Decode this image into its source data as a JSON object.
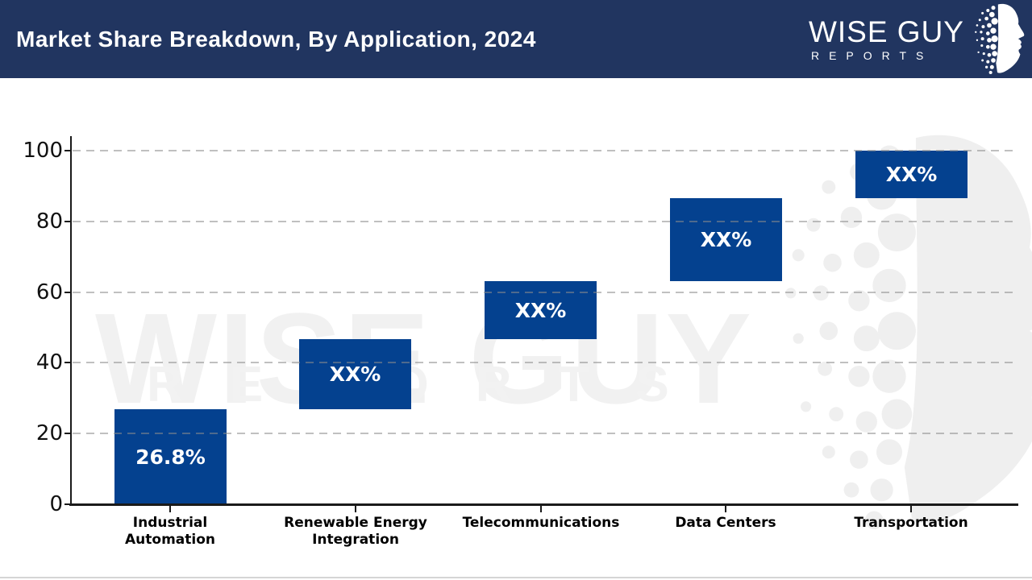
{
  "header": {
    "title": "Market Share Breakdown, By Application, 2024",
    "bg_color": "#213560",
    "logo": {
      "line1": "WISE GUY",
      "line2": "REPORTS"
    }
  },
  "watermark": {
    "line1": "WISE GUY",
    "line2": "REPORTS",
    "color": "#f1f1f1"
  },
  "chart_data": {
    "type": "bar",
    "subtype": "waterfall",
    "title": "Market Share Breakdown, By Application, 2024",
    "categories": [
      "Industrial Automation",
      "Renewable Energy Integration",
      "Telecommunications",
      "Data Centers",
      "Transportation"
    ],
    "segments": [
      {
        "label": "26.8%",
        "start": 0,
        "end": 26.8
      },
      {
        "label": "XX%",
        "start": 26.8,
        "end": 46.8
      },
      {
        "label": "XX%",
        "start": 46.8,
        "end": 63.0
      },
      {
        "label": "XX%",
        "start": 63.0,
        "end": 86.5
      },
      {
        "label": "XX%",
        "start": 86.5,
        "end": 100.0
      }
    ],
    "yticks": [
      0,
      20,
      40,
      60,
      80,
      100
    ],
    "ylim": [
      0,
      104
    ],
    "bar_color": "#04418f",
    "label_color": "#ffffff",
    "grid": "dashed-horizontal",
    "legend": "none"
  }
}
